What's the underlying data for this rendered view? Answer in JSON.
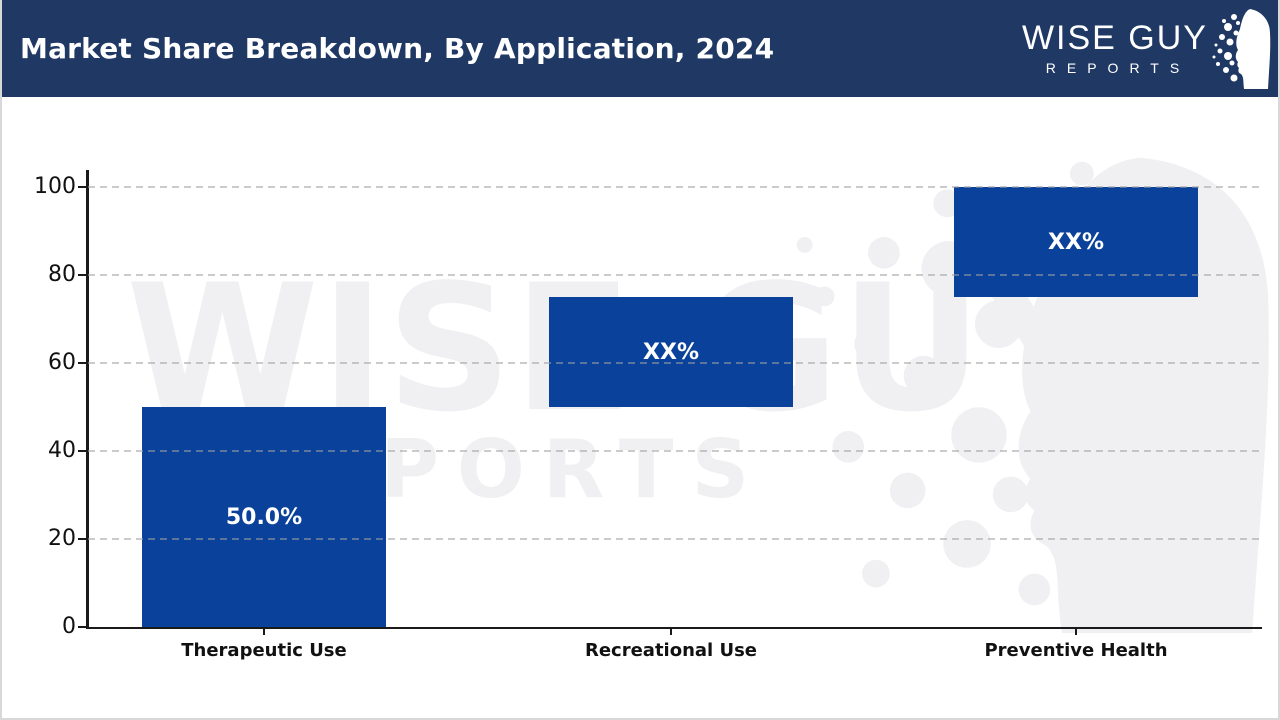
{
  "header": {
    "title": "Market Share Breakdown, By Application, 2024",
    "logo": {
      "name_top": "WISE GUY",
      "name_bottom": "REPORTS"
    }
  },
  "watermark": {
    "line1": "WISE GUY",
    "line2": "REPORTS"
  },
  "colors": {
    "header_bg": "#1f3864",
    "bar": "#0a429b",
    "grid": "#a0a0a0",
    "axis": "#1a1a1a",
    "watermark": "#f0f0f3"
  },
  "chart_data": {
    "type": "bar",
    "subtype": "floating_segment_bars",
    "title": "Market Share Breakdown, By Application, 2024",
    "categories": [
      "Therapeutic Use",
      "Recreational Use",
      "Preventive Health"
    ],
    "segments": [
      {
        "category": "Therapeutic Use",
        "from": 0,
        "to": 50,
        "label": "50.0%"
      },
      {
        "category": "Recreational Use",
        "from": 50,
        "to": 75,
        "label": "XX%"
      },
      {
        "category": "Preventive Health",
        "from": 75,
        "to": 100,
        "label": "XX%"
      }
    ],
    "yticks": [
      0,
      20,
      40,
      60,
      80,
      100
    ],
    "ylim": [
      0,
      104
    ],
    "grid": "horizontal dashed, drawn over bars",
    "legend": "none",
    "xlabel": "",
    "ylabel": ""
  }
}
